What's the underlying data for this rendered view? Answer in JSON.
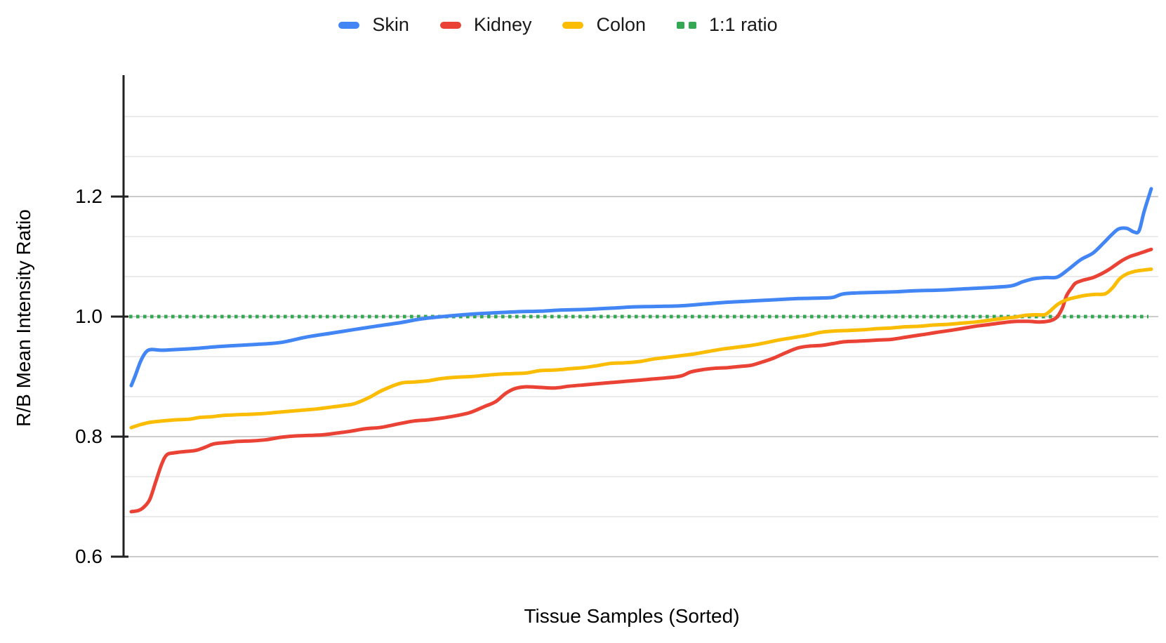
{
  "chart_data": {
    "type": "line",
    "xlabel": "Tissue Samples (Sorted)",
    "ylabel": "R/B Mean Intensity Ratio",
    "ylim": [
      0.6,
      1.4
    ],
    "yticks": [
      0.6,
      0.8,
      1.0,
      1.2
    ],
    "ytick_labels": [
      "0.6",
      "0.8",
      "1.0",
      "1.2"
    ],
    "minor_gridlines": [
      0.6667,
      0.7333,
      0.8667,
      0.9333,
      1.0667,
      1.1333,
      1.2667,
      1.3333
    ],
    "legend_position": "top",
    "grid": true,
    "x_unit": "sorted sample position (fraction 0-1)",
    "series": [
      {
        "name": "Skin",
        "color": "#4285F4",
        "points": [
          [
            0,
            0.885
          ],
          [
            0.004,
            0.902
          ],
          [
            0.009,
            0.925
          ],
          [
            0.014,
            0.94
          ],
          [
            0.019,
            0.945
          ],
          [
            0.03,
            0.944
          ],
          [
            0.043,
            0.945
          ],
          [
            0.064,
            0.947
          ],
          [
            0.085,
            0.95
          ],
          [
            0.105,
            0.952
          ],
          [
            0.126,
            0.954
          ],
          [
            0.147,
            0.957
          ],
          [
            0.172,
            0.966
          ],
          [
            0.195,
            0.972
          ],
          [
            0.217,
            0.978
          ],
          [
            0.24,
            0.984
          ],
          [
            0.264,
            0.99
          ],
          [
            0.284,
            0.996
          ],
          [
            0.305,
            1.0
          ],
          [
            0.332,
            1.004
          ],
          [
            0.353,
            1.006
          ],
          [
            0.377,
            1.008
          ],
          [
            0.401,
            1.009
          ],
          [
            0.422,
            1.011
          ],
          [
            0.446,
            1.012
          ],
          [
            0.47,
            1.014
          ],
          [
            0.491,
            1.016
          ],
          [
            0.515,
            1.017
          ],
          [
            0.539,
            1.018
          ],
          [
            0.562,
            1.021
          ],
          [
            0.585,
            1.024
          ],
          [
            0.608,
            1.026
          ],
          [
            0.63,
            1.028
          ],
          [
            0.654,
            1.03
          ],
          [
            0.677,
            1.031
          ],
          [
            0.688,
            1.032
          ],
          [
            0.699,
            1.038
          ],
          [
            0.723,
            1.04
          ],
          [
            0.745,
            1.041
          ],
          [
            0.768,
            1.043
          ],
          [
            0.791,
            1.044
          ],
          [
            0.814,
            1.046
          ],
          [
            0.837,
            1.048
          ],
          [
            0.862,
            1.051
          ],
          [
            0.874,
            1.058
          ],
          [
            0.885,
            1.063
          ],
          [
            0.897,
            1.065
          ],
          [
            0.908,
            1.066
          ],
          [
            0.919,
            1.079
          ],
          [
            0.931,
            1.095
          ],
          [
            0.943,
            1.106
          ],
          [
            0.954,
            1.124
          ],
          [
            0.961,
            1.136
          ],
          [
            0.968,
            1.146
          ],
          [
            0.976,
            1.147
          ],
          [
            0.983,
            1.141
          ],
          [
            0.988,
            1.143
          ],
          [
            0.993,
            1.175
          ],
          [
            1,
            1.213
          ]
        ]
      },
      {
        "name": "Kidney",
        "color": "#EA4335",
        "points": [
          [
            0,
            0.675
          ],
          [
            0.007,
            0.677
          ],
          [
            0.012,
            0.682
          ],
          [
            0.018,
            0.695
          ],
          [
            0.024,
            0.725
          ],
          [
            0.03,
            0.755
          ],
          [
            0.035,
            0.77
          ],
          [
            0.042,
            0.773
          ],
          [
            0.052,
            0.775
          ],
          [
            0.063,
            0.777
          ],
          [
            0.072,
            0.782
          ],
          [
            0.081,
            0.788
          ],
          [
            0.092,
            0.79
          ],
          [
            0.105,
            0.792
          ],
          [
            0.119,
            0.793
          ],
          [
            0.133,
            0.795
          ],
          [
            0.147,
            0.799
          ],
          [
            0.16,
            0.801
          ],
          [
            0.174,
            0.802
          ],
          [
            0.188,
            0.803
          ],
          [
            0.202,
            0.806
          ],
          [
            0.215,
            0.809
          ],
          [
            0.229,
            0.813
          ],
          [
            0.243,
            0.815
          ],
          [
            0.253,
            0.818
          ],
          [
            0.264,
            0.822
          ],
          [
            0.277,
            0.826
          ],
          [
            0.291,
            0.828
          ],
          [
            0.305,
            0.831
          ],
          [
            0.319,
            0.835
          ],
          [
            0.332,
            0.84
          ],
          [
            0.346,
            0.85
          ],
          [
            0.357,
            0.858
          ],
          [
            0.367,
            0.872
          ],
          [
            0.376,
            0.88
          ],
          [
            0.387,
            0.883
          ],
          [
            0.401,
            0.882
          ],
          [
            0.415,
            0.881
          ],
          [
            0.429,
            0.884
          ],
          [
            0.443,
            0.886
          ],
          [
            0.456,
            0.888
          ],
          [
            0.47,
            0.89
          ],
          [
            0.484,
            0.892
          ],
          [
            0.498,
            0.894
          ],
          [
            0.511,
            0.896
          ],
          [
            0.525,
            0.898
          ],
          [
            0.539,
            0.901
          ],
          [
            0.549,
            0.908
          ],
          [
            0.562,
            0.912
          ],
          [
            0.573,
            0.914
          ],
          [
            0.585,
            0.915
          ],
          [
            0.597,
            0.917
          ],
          [
            0.608,
            0.919
          ],
          [
            0.618,
            0.924
          ],
          [
            0.63,
            0.931
          ],
          [
            0.642,
            0.94
          ],
          [
            0.654,
            0.948
          ],
          [
            0.666,
            0.951
          ],
          [
            0.677,
            0.952
          ],
          [
            0.688,
            0.955
          ],
          [
            0.699,
            0.958
          ],
          [
            0.711,
            0.959
          ],
          [
            0.723,
            0.96
          ],
          [
            0.734,
            0.961
          ],
          [
            0.745,
            0.962
          ],
          [
            0.757,
            0.965
          ],
          [
            0.768,
            0.968
          ],
          [
            0.78,
            0.971
          ],
          [
            0.791,
            0.974
          ],
          [
            0.803,
            0.977
          ],
          [
            0.814,
            0.98
          ],
          [
            0.828,
            0.984
          ],
          [
            0.842,
            0.987
          ],
          [
            0.855,
            0.99
          ],
          [
            0.869,
            0.992
          ],
          [
            0.88,
            0.992
          ],
          [
            0.89,
            0.991
          ],
          [
            0.898,
            0.992
          ],
          [
            0.904,
            0.995
          ],
          [
            0.908,
            1.0
          ],
          [
            0.913,
            1.015
          ],
          [
            0.917,
            1.035
          ],
          [
            0.922,
            1.048
          ],
          [
            0.926,
            1.056
          ],
          [
            0.934,
            1.061
          ],
          [
            0.943,
            1.065
          ],
          [
            0.952,
            1.072
          ],
          [
            0.959,
            1.079
          ],
          [
            0.965,
            1.086
          ],
          [
            0.972,
            1.094
          ],
          [
            0.979,
            1.1
          ],
          [
            0.986,
            1.104
          ],
          [
            0.993,
            1.108
          ],
          [
            1,
            1.112
          ]
        ]
      },
      {
        "name": "Colon",
        "color": "#FBBC04",
        "points": [
          [
            0,
            0.815
          ],
          [
            0.009,
            0.82
          ],
          [
            0.019,
            0.824
          ],
          [
            0.03,
            0.826
          ],
          [
            0.043,
            0.828
          ],
          [
            0.057,
            0.829
          ],
          [
            0.067,
            0.832
          ],
          [
            0.078,
            0.833
          ],
          [
            0.088,
            0.835
          ],
          [
            0.098,
            0.836
          ],
          [
            0.112,
            0.837
          ],
          [
            0.126,
            0.838
          ],
          [
            0.14,
            0.84
          ],
          [
            0.153,
            0.842
          ],
          [
            0.167,
            0.844
          ],
          [
            0.181,
            0.846
          ],
          [
            0.195,
            0.849
          ],
          [
            0.209,
            0.852
          ],
          [
            0.219,
            0.855
          ],
          [
            0.233,
            0.865
          ],
          [
            0.246,
            0.877
          ],
          [
            0.264,
            0.889
          ],
          [
            0.277,
            0.891
          ],
          [
            0.291,
            0.893
          ],
          [
            0.305,
            0.897
          ],
          [
            0.319,
            0.899
          ],
          [
            0.332,
            0.9
          ],
          [
            0.346,
            0.902
          ],
          [
            0.36,
            0.904
          ],
          [
            0.374,
            0.905
          ],
          [
            0.387,
            0.906
          ],
          [
            0.401,
            0.91
          ],
          [
            0.415,
            0.911
          ],
          [
            0.429,
            0.913
          ],
          [
            0.443,
            0.915
          ],
          [
            0.456,
            0.918
          ],
          [
            0.47,
            0.922
          ],
          [
            0.484,
            0.923
          ],
          [
            0.498,
            0.925
          ],
          [
            0.511,
            0.929
          ],
          [
            0.525,
            0.932
          ],
          [
            0.539,
            0.935
          ],
          [
            0.553,
            0.938
          ],
          [
            0.566,
            0.942
          ],
          [
            0.58,
            0.946
          ],
          [
            0.594,
            0.949
          ],
          [
            0.608,
            0.952
          ],
          [
            0.621,
            0.956
          ],
          [
            0.635,
            0.961
          ],
          [
            0.649,
            0.965
          ],
          [
            0.663,
            0.969
          ],
          [
            0.677,
            0.974
          ],
          [
            0.69,
            0.976
          ],
          [
            0.704,
            0.977
          ],
          [
            0.718,
            0.978
          ],
          [
            0.732,
            0.98
          ],
          [
            0.745,
            0.981
          ],
          [
            0.759,
            0.983
          ],
          [
            0.773,
            0.984
          ],
          [
            0.787,
            0.986
          ],
          [
            0.8,
            0.987
          ],
          [
            0.814,
            0.989
          ],
          [
            0.828,
            0.991
          ],
          [
            0.842,
            0.994
          ],
          [
            0.855,
            0.997
          ],
          [
            0.866,
            0.999
          ],
          [
            0.876,
            1.002
          ],
          [
            0.887,
            1.003
          ],
          [
            0.895,
            1.003
          ],
          [
            0.9,
            1.008
          ],
          [
            0.908,
            1.02
          ],
          [
            0.917,
            1.028
          ],
          [
            0.926,
            1.032
          ],
          [
            0.934,
            1.035
          ],
          [
            0.945,
            1.037
          ],
          [
            0.955,
            1.038
          ],
          [
            0.962,
            1.048
          ],
          [
            0.969,
            1.063
          ],
          [
            0.976,
            1.071
          ],
          [
            0.983,
            1.075
          ],
          [
            0.99,
            1.077
          ],
          [
            1,
            1.079
          ]
        ]
      }
    ],
    "reference_line": {
      "name": "1:1 ratio",
      "color": "#34A853",
      "style": "dotted",
      "value": 1.0
    }
  }
}
